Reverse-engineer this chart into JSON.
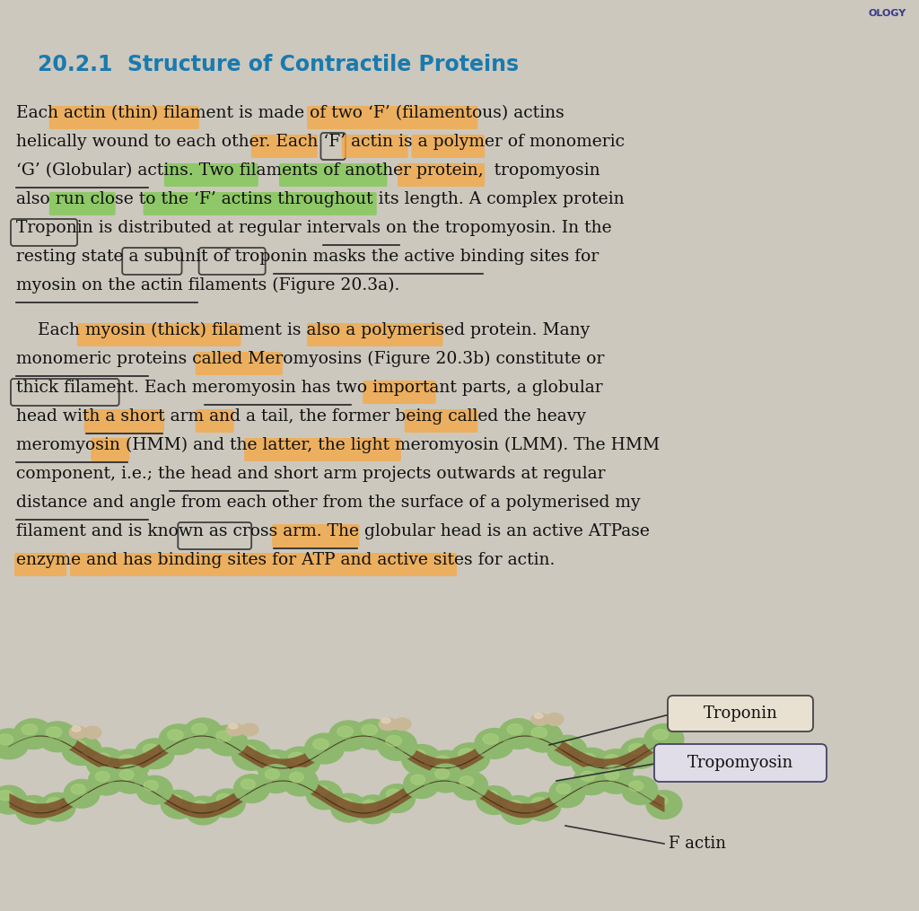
{
  "title": "20.2.1  Structure of Contractile Proteins",
  "title_color": "#1a7aad",
  "bg_color": "#ccc8be",
  "text_color": "#111111",
  "orange": "#f5a844",
  "green": "#7ec850",
  "p1_lines": [
    "Each actin (thin) filament is made of two ‘F’ (filamentous) actins",
    "helically wound to each other. Each ‘F’ actin is a polymer of monomeric",
    "‘G’ (Globular) actins. Two filaments of another protein,  tropomyosin",
    "also run close to the ‘F’ actins throughout its length. A complex protein",
    "Troponin is distributed at regular intervals on the tropomyosin. In the",
    "resting state a subunit of troponin masks the active binding sites for",
    "myosin on the actin filaments (Figure 20.3a)."
  ],
  "p2_lines": [
    "    Each myosin (thick) filament is also a polymerised protein. Many",
    "monomeric proteins called Meromyosins (Figure 20.3b) constitute or",
    "thick filament. Each meromyosin has two important parts, a globular",
    "head with a short arm and a tail, the former being called the heavy",
    "meromyosin (HMM) and the latter, the light meromyosin (LMM). The HMM",
    "component, i.e.; the head and short arm projects outwards at regular",
    "distance and angle from each other from the surface of a polymerised my",
    "filament and is known as cross arm. The globular head is an active ATPase",
    "enzyme and has binding sites for ATP and active sites for actin."
  ]
}
